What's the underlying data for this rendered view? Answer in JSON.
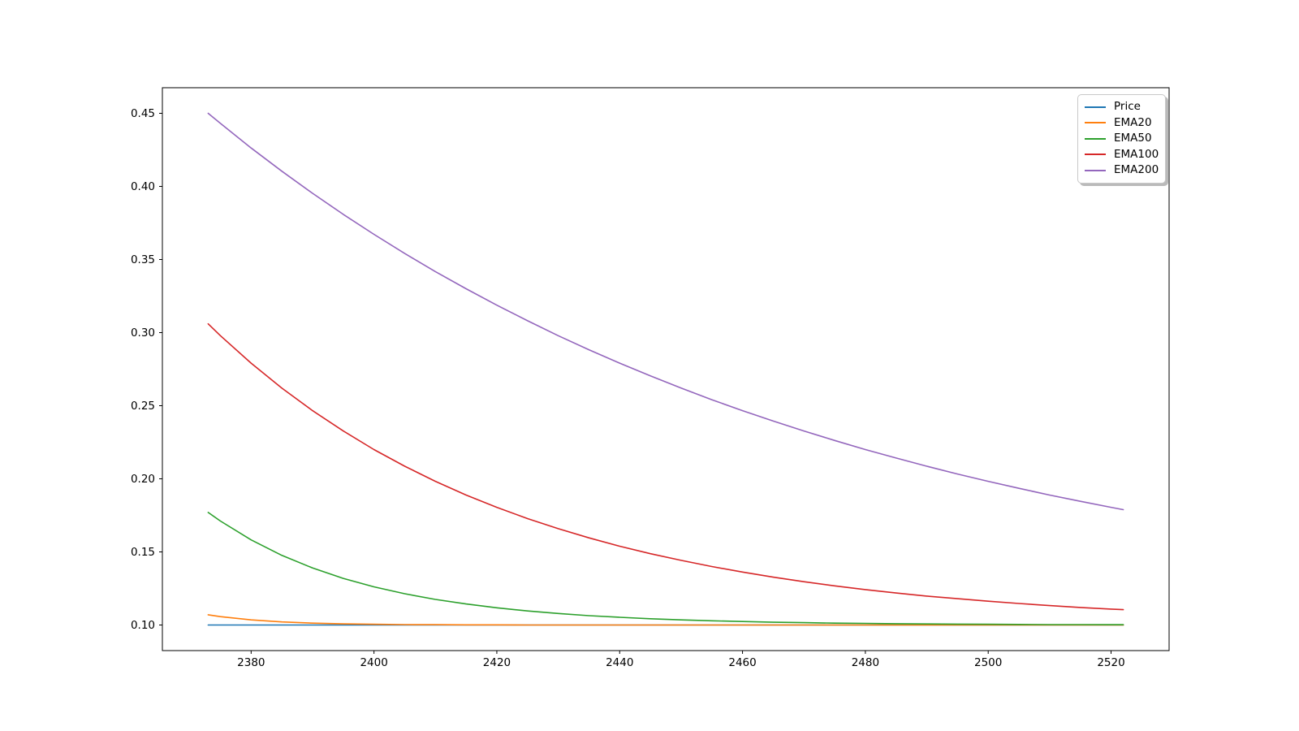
{
  "figure": {
    "background": "#ffffff"
  },
  "chart_data": {
    "type": "line",
    "title": "",
    "xlabel": "",
    "ylabel": "",
    "grid": false,
    "xlim": [
      2365.55,
      2529.45
    ],
    "ylim": [
      0.0825,
      0.4675
    ],
    "xticks": {
      "values": [
        2380,
        2400,
        2420,
        2440,
        2460,
        2480,
        2500,
        2520
      ],
      "labels": [
        "2380",
        "2400",
        "2420",
        "2440",
        "2460",
        "2480",
        "2500",
        "2520"
      ]
    },
    "yticks": {
      "values": [
        0.1,
        0.15,
        0.2,
        0.25,
        0.3,
        0.35,
        0.4,
        0.45
      ],
      "labels": [
        "0.10",
        "0.15",
        "0.20",
        "0.25",
        "0.30",
        "0.35",
        "0.40",
        "0.45"
      ]
    },
    "legend": {
      "position": "upper right",
      "shadow": true,
      "entries": [
        "Price",
        "EMA20",
        "EMA50",
        "EMA100",
        "EMA200"
      ]
    },
    "x": [
      2373,
      2375,
      2380,
      2385,
      2390,
      2395,
      2400,
      2405,
      2410,
      2415,
      2420,
      2425,
      2430,
      2435,
      2440,
      2445,
      2450,
      2455,
      2460,
      2465,
      2470,
      2475,
      2480,
      2485,
      2490,
      2495,
      2500,
      2505,
      2510,
      2515,
      2520,
      2522
    ],
    "series": [
      {
        "name": "Price",
        "color": "#1f77b4",
        "values": [
          0.1,
          0.1,
          0.1,
          0.1,
          0.1,
          0.1,
          0.1,
          0.1,
          0.1,
          0.1,
          0.1,
          0.1,
          0.1,
          0.1,
          0.1,
          0.1,
          0.1,
          0.1,
          0.1,
          0.1,
          0.1,
          0.1,
          0.1,
          0.1,
          0.1,
          0.1,
          0.1,
          0.1,
          0.1,
          0.1,
          0.1,
          0.1
        ]
      },
      {
        "name": "EMA20",
        "color": "#ff7f0e",
        "values": [
          0.107,
          0.1057,
          0.1035,
          0.1021,
          0.1013,
          0.1008,
          0.1005,
          0.1003,
          0.1002,
          0.1001,
          0.1001,
          0.1,
          0.1,
          0.1,
          0.1,
          0.1,
          0.1,
          0.1,
          0.1,
          0.1,
          0.1,
          0.1,
          0.1,
          0.1,
          0.1,
          0.1,
          0.1,
          0.1,
          0.1,
          0.1,
          0.1,
          0.1
        ]
      },
      {
        "name": "EMA50",
        "color": "#2ca02c",
        "values": [
          0.177,
          0.1711,
          0.1582,
          0.1476,
          0.139,
          0.1319,
          0.1261,
          0.1214,
          0.1175,
          0.1144,
          0.1118,
          0.1096,
          0.1079,
          0.1064,
          0.1053,
          0.1043,
          0.1035,
          0.1029,
          0.1024,
          0.1019,
          0.1016,
          0.1013,
          0.1011,
          0.1009,
          0.1007,
          0.1006,
          0.1005,
          0.1004,
          0.1003,
          0.1003,
          0.1002,
          0.1002
        ]
      },
      {
        "name": "EMA100",
        "color": "#d62728",
        "values": [
          0.306,
          0.2979,
          0.2791,
          0.262,
          0.2466,
          0.2327,
          0.22,
          0.2086,
          0.1983,
          0.1889,
          0.1805,
          0.1728,
          0.1659,
          0.1596,
          0.1539,
          0.1488,
          0.1442,
          0.14,
          0.1362,
          0.1327,
          0.1296,
          0.1268,
          0.1242,
          0.1219,
          0.1198,
          0.118,
          0.1163,
          0.1147,
          0.1133,
          0.112,
          0.1109,
          0.1105
        ]
      },
      {
        "name": "EMA200",
        "color": "#9467bd",
        "values": [
          0.45,
          0.4431,
          0.4263,
          0.4104,
          0.3953,
          0.3809,
          0.3672,
          0.3541,
          0.3417,
          0.33,
          0.3188,
          0.3081,
          0.2979,
          0.2883,
          0.2791,
          0.2704,
          0.2621,
          0.2541,
          0.2466,
          0.2395,
          0.2327,
          0.2262,
          0.22,
          0.2142,
          0.2086,
          0.2033,
          0.1983,
          0.1935,
          0.1889,
          0.1846,
          0.1805,
          0.1789
        ]
      }
    ],
    "colors": {
      "axes_edge": "#000000",
      "tick_label": "#000000",
      "legend_border": "#c8c8c8",
      "legend_bg": "#ffffff"
    }
  }
}
